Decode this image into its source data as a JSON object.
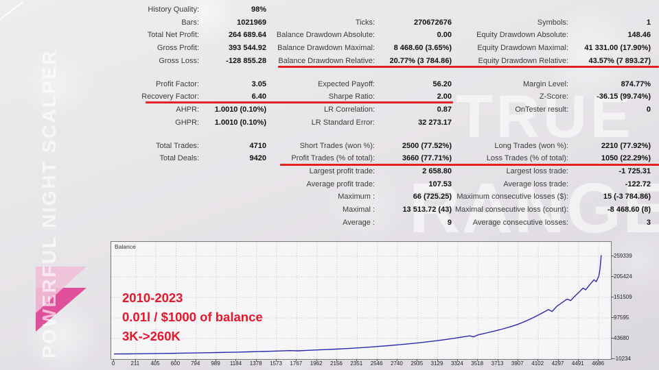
{
  "side_text": {
    "text": "POWERFUL NIGHT SCALPER"
  },
  "watermark": {
    "line1": "TRUE",
    "line2": "RANGE",
    "color": "rgba(255,255,255,0.55)"
  },
  "logo": {
    "light_color": "#efc0d8",
    "dark_color": "#e0509a"
  },
  "highlight": {
    "color": "#e32020"
  },
  "stats": {
    "sections": [
      {
        "rows": [
          [
            "History Quality:",
            "98%",
            "",
            "",
            "",
            ""
          ],
          [
            "Bars:",
            "1021969",
            "Ticks:",
            "270672676",
            "Symbols:",
            "1"
          ],
          [
            "Total Net Profit:",
            "264 689.64",
            "Balance Drawdown Absolute:",
            "0.00",
            "Equity Drawdown Absolute:",
            "148.46"
          ],
          [
            "Gross Profit:",
            "393 544.92",
            "Balance Drawdown Maximal:",
            "8 468.60 (3.65%)",
            "Equity Drawdown Maximal:",
            "41 331.00 (17.90%)"
          ],
          [
            "Gross Loss:",
            "-128 855.28",
            "Balance Drawdown Relative:",
            "20.77% (3 784.86)",
            "Equity Drawdown Relative:",
            "43.57% (7 893.27)"
          ]
        ]
      },
      {
        "rows": [
          [
            "Profit Factor:",
            "3.05",
            "Expected Payoff:",
            "56.20",
            "Margin Level:",
            "874.77%"
          ],
          [
            "Recovery Factor:",
            "6.40",
            "Sharpe Ratio:",
            "2.00",
            "Z-Score:",
            "-36.15 (99.74%)"
          ],
          [
            "AHPR:",
            "1.0010 (0.10%)",
            "LR Correlation:",
            "0.87",
            "OnTester result:",
            "0"
          ],
          [
            "GHPR:",
            "1.0010 (0.10%)",
            "LR Standard Error:",
            "32 273.17",
            "",
            ""
          ]
        ]
      },
      {
        "rows": [
          [
            "Total Trades:",
            "4710",
            "Short Trades (won %):",
            "2500 (77.52%)",
            "Long Trades (won %):",
            "2210 (77.92%)"
          ],
          [
            "Total Deals:",
            "9420",
            "Profit Trades (% of total):",
            "3660 (77.71%)",
            "Loss Trades (% of total):",
            "1050 (22.29%)"
          ]
        ]
      },
      {
        "rows": [
          [
            "",
            "",
            "Largest profit trade:",
            "2 658.80",
            "Largest loss trade:",
            "-1 725.31"
          ],
          [
            "",
            "",
            "Average profit trade:",
            "107.53",
            "Average loss trade:",
            "-122.72"
          ],
          [
            "",
            "",
            "Maximum :",
            "66 (725.25)",
            "Maximum consecutive losses ($):",
            "15 (-3 784.86)"
          ],
          [
            "",
            "",
            "Maximal :",
            "13 513.72 (43)",
            "Maximal consecutive loss (count):",
            "-8 468.60 (8)"
          ],
          [
            "",
            "",
            "Average :",
            "9",
            "Average consecutive losses:",
            "3"
          ]
        ]
      }
    ]
  },
  "chart_data": {
    "type": "line",
    "title": "Balance",
    "xlabel": "",
    "ylabel": "",
    "grid": true,
    "legend_position": "none",
    "line_color": "#2a28ad",
    "annotation_color": "#e5182b",
    "annotations": [
      "2010-2023",
      "0.01l / $1000 of balance",
      "3K->260K"
    ],
    "x_tick_labels": [
      "0",
      "211",
      "405",
      "600",
      "794",
      "989",
      "1184",
      "1378",
      "1573",
      "1767",
      "1962",
      "2156",
      "2351",
      "2546",
      "2740",
      "2935",
      "3129",
      "3324",
      "3518",
      "3713",
      "3907",
      "4102",
      "4297",
      "4491",
      "4686"
    ],
    "x_tick_values": [
      0,
      211,
      405,
      600,
      794,
      989,
      1184,
      1378,
      1573,
      1767,
      1962,
      2156,
      2351,
      2546,
      2740,
      2935,
      3129,
      3324,
      3518,
      3713,
      3907,
      4102,
      4297,
      4491,
      4686
    ],
    "y_tick_labels": [
      "259339",
      "205424",
      "151509",
      "97595",
      "43680",
      "-10234"
    ],
    "y_tick_values": [
      259339,
      205424,
      151509,
      97595,
      43680,
      -10234
    ],
    "xlim": [
      0,
      4800
    ],
    "ylim": [
      -10234,
      297000
    ],
    "series": [
      {
        "name": "Balance",
        "points": [
          [
            0,
            3000
          ],
          [
            120,
            3300
          ],
          [
            240,
            3650
          ],
          [
            360,
            4050
          ],
          [
            480,
            4450
          ],
          [
            600,
            4900
          ],
          [
            700,
            5350
          ],
          [
            800,
            5800
          ],
          [
            900,
            6300
          ],
          [
            1000,
            6850
          ],
          [
            1100,
            7400
          ],
          [
            1200,
            8000
          ],
          [
            1300,
            8650
          ],
          [
            1400,
            9350
          ],
          [
            1500,
            10100
          ],
          [
            1600,
            10900
          ],
          [
            1700,
            11800
          ],
          [
            1780,
            11400
          ],
          [
            1860,
            12400
          ],
          [
            1950,
            13400
          ],
          [
            2050,
            14600
          ],
          [
            2150,
            15900
          ],
          [
            2250,
            17300
          ],
          [
            2350,
            18900
          ],
          [
            2450,
            20700
          ],
          [
            2546,
            22600
          ],
          [
            2650,
            24800
          ],
          [
            2740,
            27000
          ],
          [
            2840,
            29500
          ],
          [
            2940,
            32200
          ],
          [
            3040,
            35200
          ],
          [
            3129,
            38200
          ],
          [
            3210,
            41200
          ],
          [
            3290,
            44300
          ],
          [
            3370,
            47600
          ],
          [
            3440,
            50700
          ],
          [
            3475,
            48000
          ],
          [
            3518,
            53000
          ],
          [
            3600,
            58000
          ],
          [
            3680,
            63200
          ],
          [
            3760,
            68800
          ],
          [
            3840,
            75000
          ],
          [
            3907,
            81000
          ],
          [
            3970,
            88000
          ],
          [
            4030,
            95500
          ],
          [
            4090,
            103500
          ],
          [
            4150,
            112000
          ],
          [
            4200,
            119500
          ],
          [
            4235,
            114500
          ],
          [
            4280,
            128000
          ],
          [
            4330,
            137500
          ],
          [
            4380,
            147000
          ],
          [
            4415,
            143000
          ],
          [
            4460,
            156000
          ],
          [
            4500,
            166000
          ],
          [
            4535,
            176000
          ],
          [
            4560,
            171500
          ],
          [
            4600,
            185000
          ],
          [
            4640,
            197500
          ],
          [
            4663,
            193000
          ],
          [
            4686,
            207000
          ],
          [
            4694,
            218000
          ],
          [
            4700,
            231000
          ],
          [
            4705,
            244000
          ],
          [
            4710,
            262000
          ]
        ]
      }
    ]
  }
}
